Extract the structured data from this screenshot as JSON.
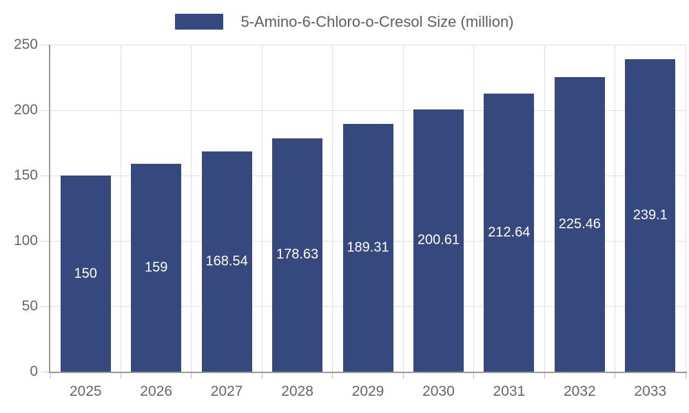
{
  "chart_data": {
    "type": "bar",
    "title": "5-Amino-6-Chloro-o-Cresol Size (million)",
    "categories": [
      "2025",
      "2026",
      "2027",
      "2028",
      "2029",
      "2030",
      "2031",
      "2032",
      "2033"
    ],
    "values": [
      150,
      159,
      168.54,
      178.63,
      189.31,
      200.61,
      212.64,
      225.46,
      239.1
    ],
    "xlabel": "",
    "ylabel": "",
    "ylim": [
      0,
      250
    ],
    "yticks": [
      0,
      50,
      100,
      150,
      200,
      250
    ],
    "grid": true,
    "legend_position": "top",
    "value_labels_position": "inside-center"
  },
  "colors": {
    "bar": "#36497e",
    "grid": "#e0e0e0",
    "axis": "#999999",
    "y_tick": "#d9d9d9",
    "x_tick": "#bbbbbb",
    "axis_text": "#666666",
    "legend_text": "#5e5e5e",
    "value_text": "#ffffff",
    "background": "#ffffff"
  }
}
